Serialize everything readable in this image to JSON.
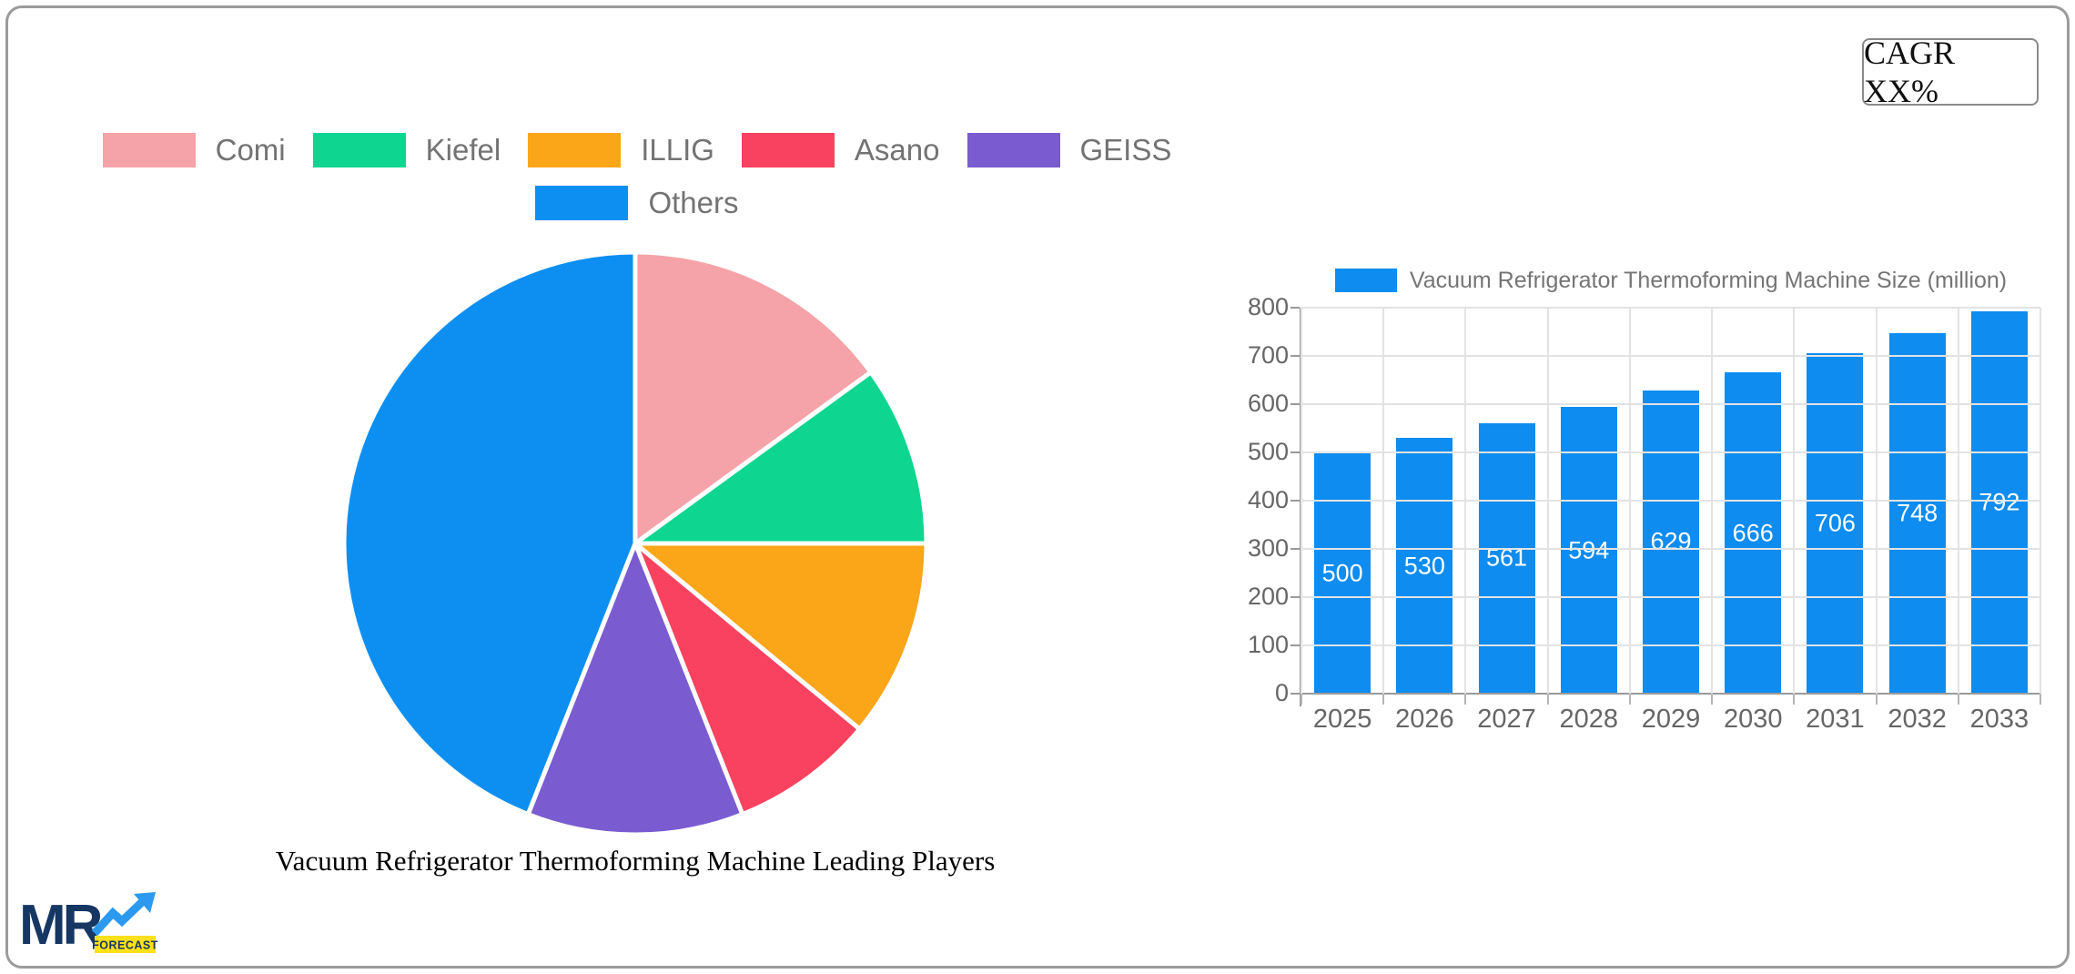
{
  "header": {
    "cagr_label": "CAGR XX%"
  },
  "colors": {
    "axis": "#9a9a9a",
    "grid": "#e3e3e3",
    "tick_text": "#666666",
    "legend_text": "#737373",
    "logo_navy": "#173763",
    "logo_blue": "#2b99f0",
    "logo_yellow": "#ffe019"
  },
  "chart_data": [
    {
      "type": "pie",
      "title": "Vacuum Refrigerator Thermoforming Machine Leading Players",
      "labels": [
        "Comi",
        "Kiefel",
        "ILLIG",
        "Asano",
        "GEISS",
        "Others"
      ],
      "values_percent": [
        15,
        10,
        11,
        8,
        12,
        44
      ],
      "colors": [
        "#f5a3a8",
        "#0ed690",
        "#fba519",
        "#f8425f",
        "#7a5cd0",
        "#0d8ff2"
      ],
      "start_angle_deg": 0,
      "direction": "clockwise",
      "legend_rows": [
        [
          0,
          1,
          2,
          3,
          4
        ],
        [
          5
        ]
      ],
      "legend_position": "top",
      "separator_color": "#ffffff"
    },
    {
      "type": "bar",
      "legend": "Vacuum Refrigerator Thermoforming Machine Size (million)",
      "categories": [
        "2025",
        "2026",
        "2027",
        "2028",
        "2029",
        "2030",
        "2031",
        "2032",
        "2033"
      ],
      "values": [
        500,
        530,
        561,
        594,
        629,
        666,
        706,
        748,
        792
      ],
      "bar_color": "#0e8cef",
      "ylim": [
        0,
        800
      ],
      "ytick_step": 100,
      "grid": true,
      "value_labels": "inside-center-white"
    }
  ],
  "logo": {
    "mr": "MR",
    "sub": "FORECAST"
  }
}
